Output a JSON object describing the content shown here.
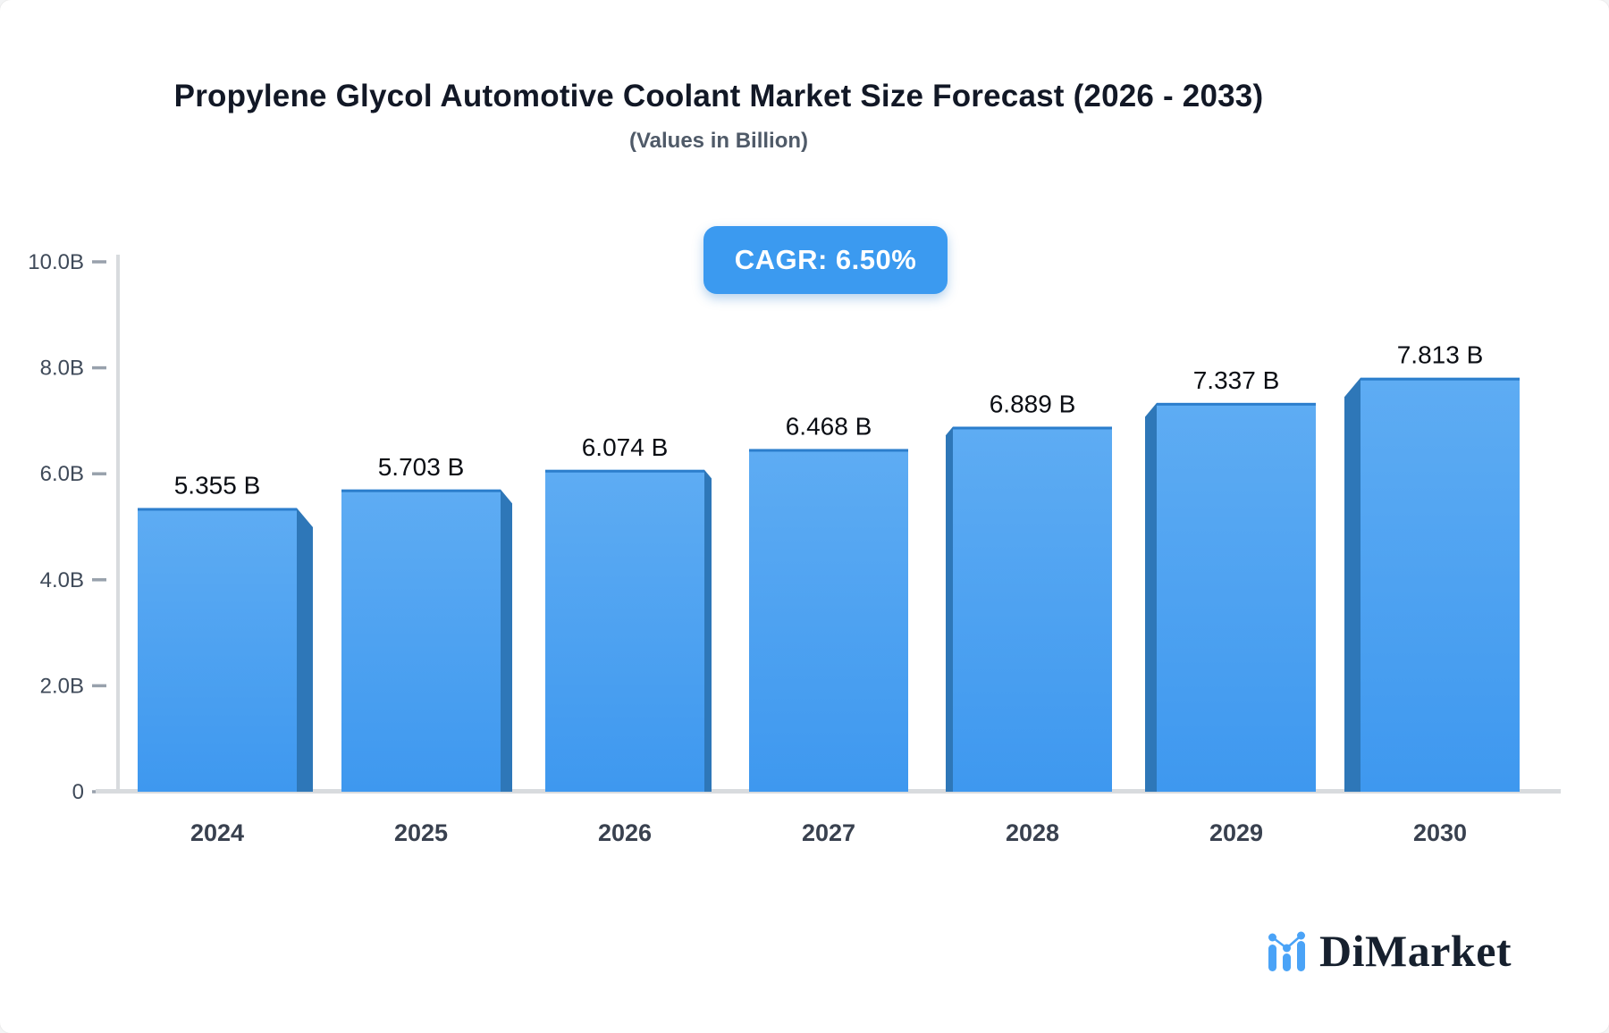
{
  "header": {
    "title": "Propylene Glycol Automotive Coolant Market Size Forecast (2026 - 2033)",
    "subtitle": "(Values in Billion)",
    "cagr_badge": "CAGR: 6.50%"
  },
  "chart_data": {
    "type": "bar",
    "title": "Propylene Glycol Automotive Coolant Market Size Forecast (2026 - 2033)",
    "subtitle": "(Values in Billion)",
    "cagr_label": "CAGR: 6.50%",
    "categories": [
      "2024",
      "2025",
      "2026",
      "2027",
      "2028",
      "2029",
      "2030"
    ],
    "values": [
      5.355,
      5.703,
      6.074,
      6.468,
      6.889,
      7.337,
      7.813
    ],
    "value_labels": [
      "5.355 B",
      "5.703 B",
      "6.074 B",
      "6.468 B",
      "6.889 B",
      "7.337 B",
      "7.813 B"
    ],
    "unit": "Billion",
    "ylim": [
      0,
      10
    ],
    "ytick_values": [
      10,
      8,
      6,
      4,
      2,
      0
    ],
    "ytick_labels": [
      "10.0B",
      "8.0B",
      "6.0B",
      "4.0B",
      "2.0B",
      "0"
    ],
    "grid": false,
    "legend": false,
    "bar_style": {
      "face_top_color": "#5EACF3",
      "face_bottom_color": "#3E98EF",
      "side_color": "#2E77B8",
      "top_edge_color": "#2C7ECC"
    },
    "axis_style": {
      "tick_label_color": "#3F4A59",
      "tick_dash_color": "#98A1AC",
      "axis_line_color": "#D8DBDE",
      "value_label_color": "#0B0E14",
      "category_label_color": "#39414F"
    }
  },
  "badge": {
    "background": "#3B9AF0",
    "text_color": "#FFFFFF"
  },
  "footer": {
    "brand": "DiMarket",
    "brand_color": "#16202E",
    "icon": "mini-bar-chart-icon",
    "icon_color": "#4AA3F7"
  }
}
